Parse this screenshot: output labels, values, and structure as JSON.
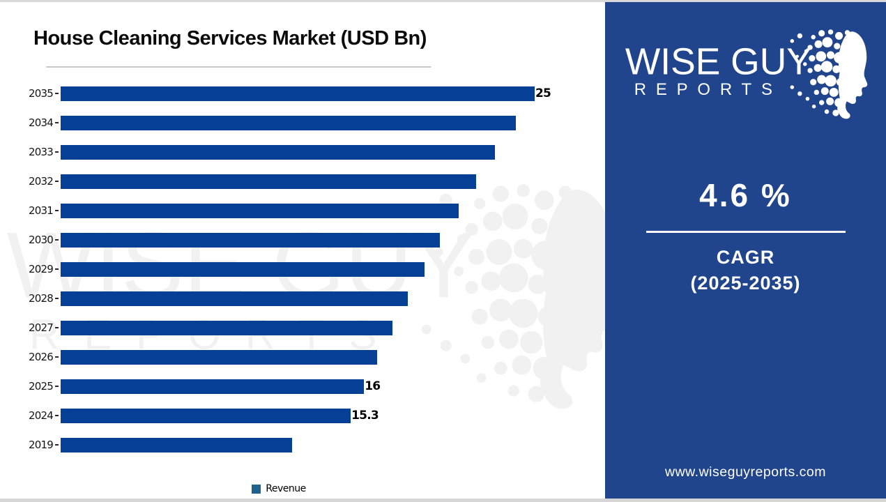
{
  "chart_data": {
    "type": "bar",
    "orientation": "horizontal",
    "title": "House Cleaning Services Market (USD Bn)",
    "xlabel": "",
    "ylabel": "",
    "categories": [
      "2035",
      "2034",
      "2033",
      "2032",
      "2031",
      "2030",
      "2029",
      "2028",
      "2027",
      "2026",
      "2025",
      "2024",
      "2019"
    ],
    "values": [
      25,
      24,
      22.9,
      21.9,
      21,
      20,
      19.2,
      18.3,
      17.5,
      16.7,
      16,
      15.3,
      12.2
    ],
    "value_labels": {
      "2035": "25",
      "2025": "16",
      "2024": "15.3"
    },
    "series_name": "Revenue",
    "xlim": [
      0,
      26.6
    ],
    "grid": false,
    "bar_color": "#063f96",
    "legend": {
      "label": "Revenue",
      "swatch_color": "#1f618d",
      "position": "bottom-center"
    }
  },
  "sidebar": {
    "background": "#21458c",
    "logo": {
      "line1": "WISE GUY",
      "line2": "REPORTS"
    },
    "cagr": {
      "value": "4.6 %",
      "label": "CAGR",
      "range": "(2025-2035)"
    },
    "website": "www.wiseguyreports.com"
  },
  "watermark": {
    "line1": "WISE GUY",
    "line2": "REPORTS"
  }
}
